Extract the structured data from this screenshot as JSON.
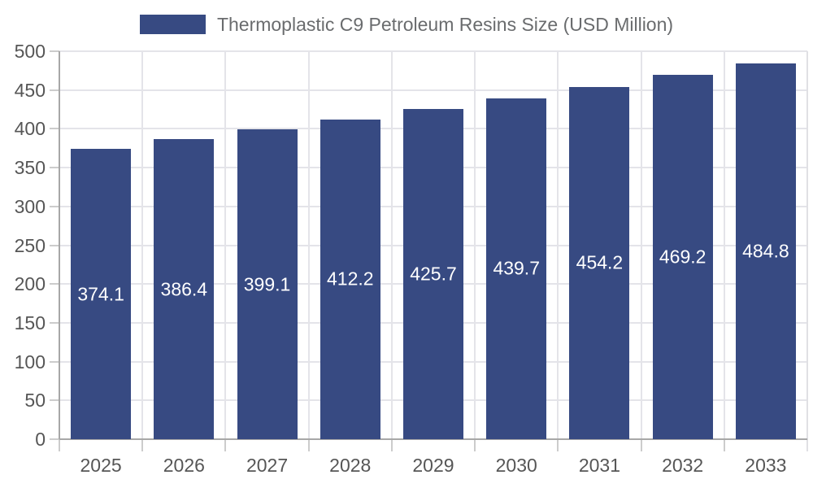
{
  "legend": {
    "swatch_color": "#374a82",
    "label": "Thermoplastic C9 Petroleum Resins Size (USD Million)"
  },
  "chart_data": {
    "type": "bar",
    "title": "Thermoplastic C9 Petroleum Resins Size (USD Million)",
    "categories": [
      "2025",
      "2026",
      "2027",
      "2028",
      "2029",
      "2030",
      "2031",
      "2032",
      "2033"
    ],
    "series": [
      {
        "name": "Thermoplastic C9 Petroleum Resins Size (USD Million)",
        "values": [
          374.1,
          386.4,
          399.1,
          412.2,
          425.7,
          439.7,
          454.2,
          469.2,
          484.8
        ]
      }
    ],
    "value_labels": [
      "374.1",
      "386.4",
      "399.1",
      "412.2",
      "425.7",
      "439.7",
      "454.2",
      "469.2",
      "484.8"
    ],
    "xlabel": "",
    "ylabel": "",
    "ylim": [
      0,
      500
    ],
    "ytick_step": 50,
    "ytick_labels": [
      "0",
      "50",
      "100",
      "150",
      "200",
      "250",
      "300",
      "350",
      "400",
      "450",
      "500"
    ],
    "grid": true,
    "legend_position": "top",
    "colors": {
      "bar": "#374a82",
      "value_label": "#ffffff",
      "axis_text": "#565656",
      "title_text": "#6a6c6e",
      "gridline": "#e4e4e9",
      "axis_line": "#a7a7a7"
    }
  }
}
